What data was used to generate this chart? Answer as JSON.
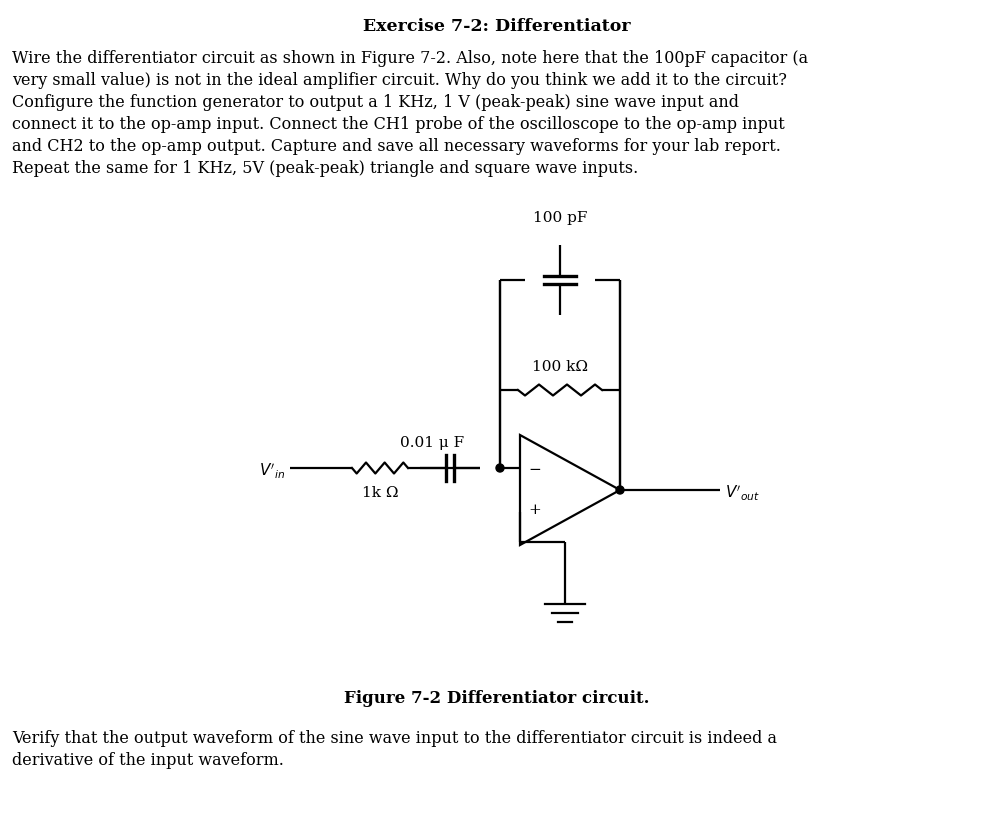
{
  "title": "Exercise 7-2: Differentiator",
  "paragraph1_lines": [
    "Wire the differentiator circuit as shown in Figure 7-2. Also, note here that the 100pF capacitor (a",
    "very small value) is not in the ideal amplifier circuit. Why do you think we add it to the circuit?",
    "Configure the function generator to output a 1 KHz, 1 V (peak-peak) sine wave input and",
    "connect it to the op-amp input. Connect the CH1 probe of the oscilloscope to the op-amp input",
    "and CH2 to the op-amp output. Capture and save all necessary waveforms for your lab report.",
    "Repeat the same for 1 KHz, 5V (peak-peak) triangle and square wave inputs."
  ],
  "figure_caption": "Figure 7-2 Differentiator circuit.",
  "paragraph2_lines": [
    "Verify that the output waveform of the sine wave input to the differentiator circuit is indeed a",
    "derivative of the input waveform."
  ],
  "bg_color": "#ffffff",
  "text_color": "#000000",
  "font_size_title": 12.5,
  "font_size_body": 11.5,
  "font_size_circuit": 11,
  "font_size_caption": 12
}
